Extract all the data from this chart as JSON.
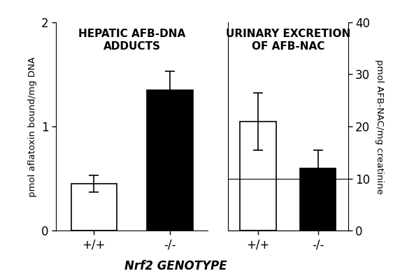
{
  "left_panel": {
    "title_line1": "HEPATIC AFB-DNA",
    "title_line2": "ADDUCTS",
    "categories": [
      "+/+",
      "-/-"
    ],
    "values": [
      0.45,
      1.35
    ],
    "errors": [
      0.08,
      0.18
    ],
    "colors": [
      "white",
      "black"
    ],
    "ylim": [
      0,
      2
    ],
    "yticks": [
      0,
      1,
      2
    ],
    "ylabel": "pmol aflatoxin bound/mg DNA"
  },
  "right_panel": {
    "title_line1": "URINARY EXCRETION",
    "title_line2": "OF AFB-NAC",
    "categories": [
      "+/+",
      "-/-"
    ],
    "values": [
      21.0,
      12.0
    ],
    "errors": [
      5.5,
      3.5
    ],
    "colors": [
      "white",
      "black"
    ],
    "ylim": [
      0,
      40
    ],
    "yticks": [
      0,
      10,
      20,
      30,
      40
    ],
    "ylabel2_label": "pmol AFB-NAC/mg creatinine"
  },
  "xlabel": "Nrf2 GENOTYPE",
  "background_color": "#ffffff",
  "bar_width": 0.6,
  "edgecolor": "black"
}
